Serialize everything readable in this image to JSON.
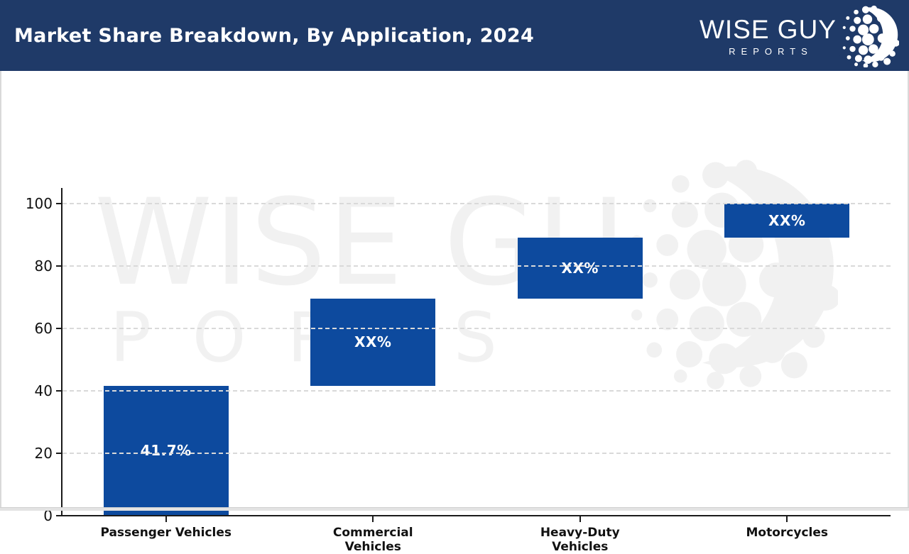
{
  "header": {
    "title": "Market Share Breakdown, By Application, 2024",
    "bg_color": "#1f3a68",
    "logo": {
      "line1": "WISE GUY",
      "line2": "REPORTS",
      "icon": "dotted-face-profile-icon"
    }
  },
  "watermark": {
    "line1": "WISE GUY",
    "line2": "PORTS",
    "icon": "dotted-face-profile-icon",
    "color": "#f1f1f1"
  },
  "chart_data": {
    "type": "bar",
    "subtype": "floating-waterfall",
    "title": "Market Share Breakdown, By Application, 2024",
    "categories": [
      [
        "Passenger Vehicles"
      ],
      [
        "Commercial",
        "Vehicles"
      ],
      [
        "Heavy-Duty",
        "Vehicles"
      ],
      [
        "Motorcycles"
      ]
    ],
    "segments": [
      {
        "category": "Passenger Vehicles",
        "start": 0,
        "end": 41.7,
        "value_shown": "41.7%",
        "value_estimated": 41.7
      },
      {
        "category": "Commercial Vehicles",
        "start": 41.7,
        "end": 69.5,
        "value_shown": "XX%",
        "value_estimated": 27.8
      },
      {
        "category": "Heavy-Duty Vehicles",
        "start": 69.5,
        "end": 89.1,
        "value_shown": "XX%",
        "value_estimated": 19.6
      },
      {
        "category": "Motorcycles",
        "start": 89.1,
        "end": 100,
        "value_shown": "XX%",
        "value_estimated": 10.9
      }
    ],
    "ylim": [
      0,
      100
    ],
    "yticks": [
      0,
      20,
      40,
      60,
      80,
      100
    ],
    "grid": "horizontal-dashed-over-bars",
    "bar_color": "#0d4a9e",
    "bar_label_color": "#ffffff",
    "axis_color": "#1a1a1a",
    "gridline_color": "#d9d9d9",
    "legend": "none"
  }
}
